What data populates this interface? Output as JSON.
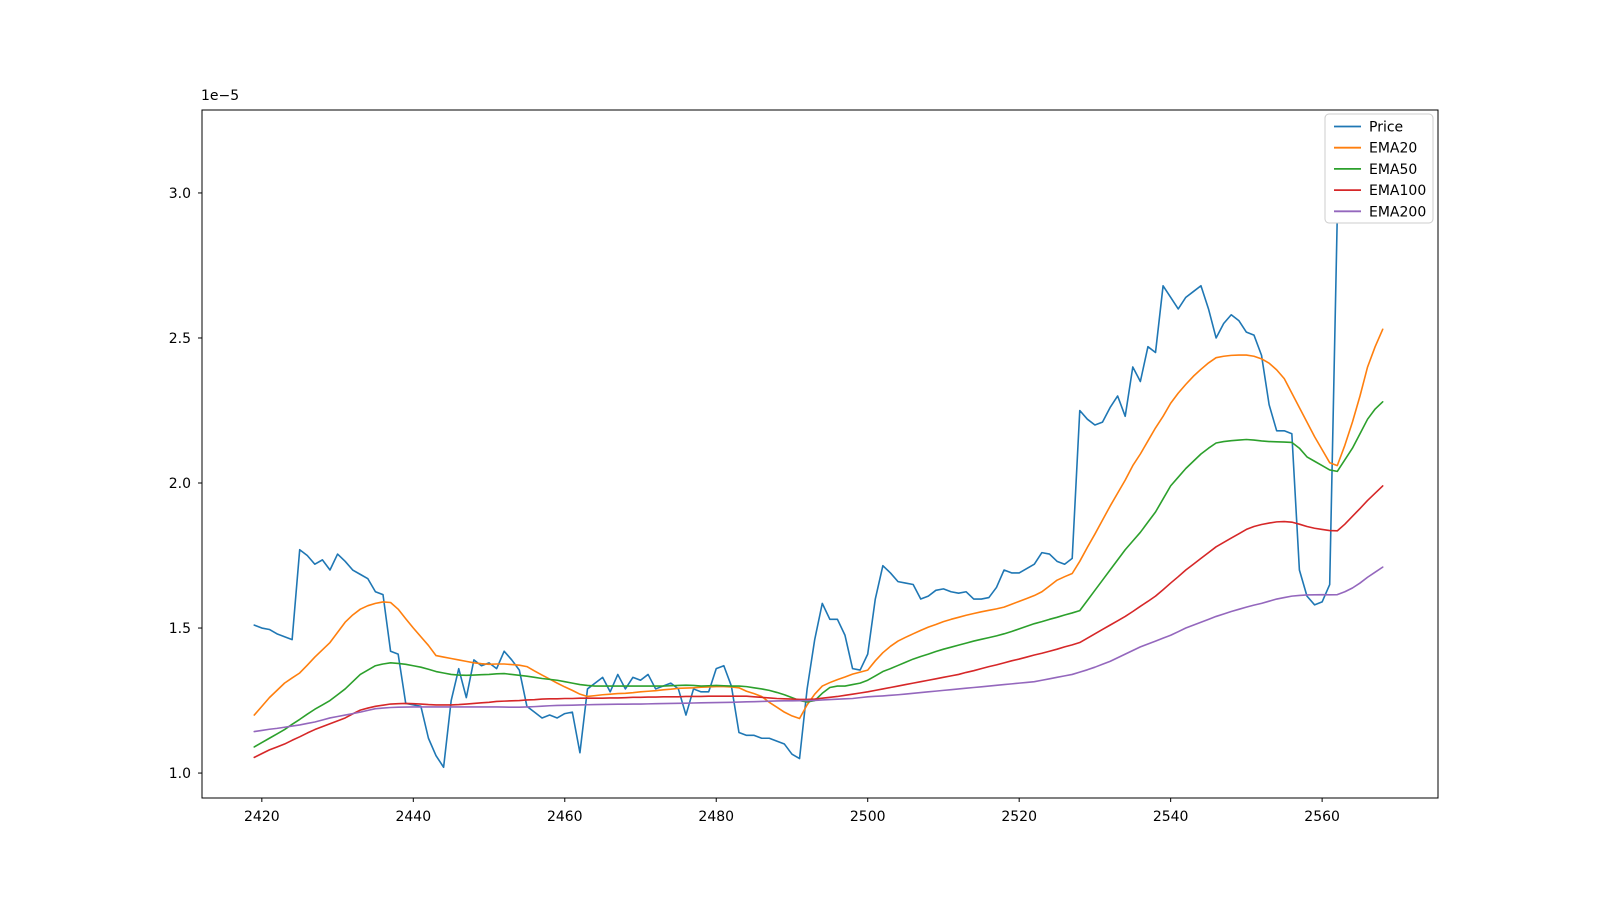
{
  "figure": {
    "background": "#ffffff",
    "offset_label": "1e−5"
  },
  "chart_data": {
    "type": "line",
    "title": "",
    "xlabel": "",
    "ylabel": "",
    "grid": false,
    "legend_position": "upper right",
    "y_offset_text": "1e−5",
    "xlim": [
      2412.1,
      2575.3
    ],
    "ylim": [
      0.914,
      3.286
    ],
    "xticks": [
      2420,
      2440,
      2460,
      2480,
      2500,
      2520,
      2540,
      2560
    ],
    "ytick_labels": [
      "1.0",
      "1.5",
      "2.0",
      "2.5",
      "3.0"
    ],
    "yticks": [
      1.0,
      1.5,
      2.0,
      2.5,
      3.0
    ],
    "x": [
      2419,
      2420,
      2421,
      2422,
      2423,
      2424,
      2425,
      2426,
      2427,
      2428,
      2429,
      2430,
      2431,
      2432,
      2433,
      2434,
      2435,
      2436,
      2437,
      2438,
      2439,
      2440,
      2441,
      2442,
      2443,
      2444,
      2445,
      2446,
      2447,
      2448,
      2449,
      2450,
      2451,
      2452,
      2453,
      2454,
      2455,
      2456,
      2457,
      2458,
      2459,
      2460,
      2461,
      2462,
      2463,
      2464,
      2465,
      2466,
      2467,
      2468,
      2469,
      2470,
      2471,
      2472,
      2473,
      2474,
      2475,
      2476,
      2477,
      2478,
      2479,
      2480,
      2481,
      2482,
      2483,
      2484,
      2485,
      2486,
      2487,
      2488,
      2489,
      2490,
      2491,
      2492,
      2493,
      2494,
      2495,
      2496,
      2497,
      2498,
      2499,
      2500,
      2501,
      2502,
      2503,
      2504,
      2505,
      2506,
      2507,
      2508,
      2509,
      2510,
      2511,
      2512,
      2513,
      2514,
      2515,
      2516,
      2517,
      2518,
      2519,
      2520,
      2521,
      2522,
      2523,
      2524,
      2525,
      2526,
      2527,
      2528,
      2529,
      2530,
      2531,
      2532,
      2533,
      2534,
      2535,
      2536,
      2537,
      2538,
      2539,
      2540,
      2541,
      2542,
      2543,
      2544,
      2545,
      2546,
      2547,
      2548,
      2549,
      2550,
      2551,
      2552,
      2553,
      2554,
      2555,
      2556,
      2557,
      2558,
      2559,
      2560,
      2561,
      2562,
      2563,
      2564,
      2565,
      2566,
      2567,
      2568
    ],
    "series": [
      {
        "name": "Price",
        "color": "#1f77b4",
        "values": [
          1.51,
          1.5,
          1.495,
          1.48,
          1.47,
          1.46,
          1.77,
          1.75,
          1.72,
          1.735,
          1.7,
          1.755,
          1.73,
          1.7,
          1.685,
          1.67,
          1.625,
          1.615,
          1.42,
          1.41,
          1.24,
          1.235,
          1.23,
          1.12,
          1.06,
          1.02,
          1.25,
          1.36,
          1.26,
          1.39,
          1.37,
          1.38,
          1.36,
          1.42,
          1.39,
          1.355,
          1.23,
          1.21,
          1.19,
          1.2,
          1.19,
          1.205,
          1.21,
          1.07,
          1.29,
          1.31,
          1.33,
          1.28,
          1.34,
          1.29,
          1.33,
          1.32,
          1.34,
          1.29,
          1.3,
          1.31,
          1.29,
          1.2,
          1.29,
          1.28,
          1.28,
          1.36,
          1.37,
          1.3,
          1.14,
          1.13,
          1.13,
          1.12,
          1.12,
          1.11,
          1.1,
          1.065,
          1.05,
          1.29,
          1.46,
          1.585,
          1.53,
          1.53,
          1.475,
          1.36,
          1.355,
          1.41,
          1.6,
          1.715,
          1.69,
          1.66,
          1.655,
          1.65,
          1.6,
          1.61,
          1.63,
          1.635,
          1.625,
          1.62,
          1.625,
          1.6,
          1.6,
          1.605,
          1.64,
          1.7,
          1.69,
          1.69,
          1.705,
          1.72,
          1.76,
          1.755,
          1.73,
          1.72,
          1.74,
          2.25,
          2.22,
          2.2,
          2.21,
          2.26,
          2.3,
          2.23,
          2.4,
          2.35,
          2.47,
          2.45,
          2.68,
          2.64,
          2.6,
          2.64,
          2.66,
          2.68,
          2.6,
          2.5,
          2.55,
          2.58,
          2.56,
          2.52,
          2.51,
          2.44,
          2.27,
          2.18,
          2.18,
          2.17,
          1.7,
          1.61,
          1.58,
          1.59,
          1.65,
          2.92,
          3.1,
          3.19,
          3.12,
          3.16,
          3.14,
          3.18
        ]
      },
      {
        "name": "EMA20",
        "color": "#ff7f0e",
        "values": [
          1.2,
          1.23,
          1.26,
          1.285,
          1.31,
          1.328,
          1.345,
          1.372,
          1.4,
          1.425,
          1.45,
          1.485,
          1.52,
          1.545,
          1.565,
          1.577,
          1.585,
          1.59,
          1.588,
          1.565,
          1.532,
          1.5,
          1.47,
          1.44,
          1.405,
          1.4,
          1.395,
          1.39,
          1.385,
          1.38,
          1.377,
          1.375,
          1.376,
          1.376,
          1.374,
          1.372,
          1.367,
          1.352,
          1.338,
          1.324,
          1.31,
          1.297,
          1.285,
          1.272,
          1.264,
          1.267,
          1.27,
          1.272,
          1.274,
          1.275,
          1.277,
          1.28,
          1.282,
          1.284,
          1.287,
          1.289,
          1.292,
          1.293,
          1.294,
          1.296,
          1.297,
          1.298,
          1.298,
          1.297,
          1.294,
          1.282,
          1.274,
          1.264,
          1.244,
          1.227,
          1.21,
          1.197,
          1.188,
          1.235,
          1.272,
          1.3,
          1.312,
          1.322,
          1.331,
          1.341,
          1.348,
          1.355,
          1.387,
          1.415,
          1.437,
          1.455,
          1.468,
          1.48,
          1.492,
          1.503,
          1.512,
          1.522,
          1.53,
          1.537,
          1.544,
          1.55,
          1.556,
          1.561,
          1.566,
          1.572,
          1.582,
          1.592,
          1.602,
          1.612,
          1.625,
          1.645,
          1.665,
          1.677,
          1.688,
          1.73,
          1.778,
          1.824,
          1.872,
          1.92,
          1.965,
          2.01,
          2.06,
          2.1,
          2.145,
          2.19,
          2.23,
          2.275,
          2.31,
          2.34,
          2.368,
          2.392,
          2.414,
          2.432,
          2.437,
          2.44,
          2.441,
          2.441,
          2.437,
          2.428,
          2.413,
          2.39,
          2.36,
          2.31,
          2.26,
          2.21,
          2.16,
          2.115,
          2.07,
          2.06,
          2.13,
          2.21,
          2.3,
          2.4,
          2.47,
          2.53
        ]
      },
      {
        "name": "EMA50",
        "color": "#2ca02c",
        "values": [
          1.09,
          1.105,
          1.12,
          1.135,
          1.15,
          1.168,
          1.185,
          1.203,
          1.22,
          1.235,
          1.25,
          1.27,
          1.29,
          1.315,
          1.34,
          1.355,
          1.37,
          1.376,
          1.38,
          1.378,
          1.375,
          1.37,
          1.365,
          1.358,
          1.35,
          1.345,
          1.34,
          1.338,
          1.337,
          1.338,
          1.339,
          1.34,
          1.342,
          1.343,
          1.34,
          1.337,
          1.334,
          1.33,
          1.326,
          1.323,
          1.32,
          1.315,
          1.31,
          1.305,
          1.302,
          1.3,
          1.3,
          1.3,
          1.3,
          1.3,
          1.3,
          1.3,
          1.3,
          1.3,
          1.3,
          1.301,
          1.302,
          1.303,
          1.302,
          1.3,
          1.301,
          1.302,
          1.301,
          1.3,
          1.3,
          1.298,
          1.294,
          1.29,
          1.285,
          1.278,
          1.27,
          1.26,
          1.25,
          1.245,
          1.25,
          1.275,
          1.295,
          1.3,
          1.3,
          1.305,
          1.31,
          1.32,
          1.335,
          1.35,
          1.36,
          1.371,
          1.382,
          1.393,
          1.402,
          1.41,
          1.419,
          1.427,
          1.434,
          1.441,
          1.448,
          1.455,
          1.461,
          1.467,
          1.473,
          1.48,
          1.488,
          1.497,
          1.506,
          1.515,
          1.522,
          1.53,
          1.537,
          1.545,
          1.552,
          1.56,
          1.595,
          1.63,
          1.665,
          1.7,
          1.735,
          1.77,
          1.8,
          1.83,
          1.865,
          1.9,
          1.945,
          1.99,
          2.02,
          2.05,
          2.075,
          2.1,
          2.12,
          2.138,
          2.143,
          2.146,
          2.148,
          2.15,
          2.148,
          2.145,
          2.143,
          2.142,
          2.141,
          2.14,
          2.12,
          2.09,
          2.075,
          2.06,
          2.045,
          2.04,
          2.08,
          2.12,
          2.17,
          2.22,
          2.255,
          2.28
        ]
      },
      {
        "name": "EMA100",
        "color": "#d62728",
        "values": [
          1.054,
          1.067,
          1.08,
          1.09,
          1.1,
          1.113,
          1.125,
          1.138,
          1.15,
          1.16,
          1.17,
          1.18,
          1.19,
          1.204,
          1.217,
          1.224,
          1.23,
          1.234,
          1.238,
          1.239,
          1.24,
          1.239,
          1.238,
          1.236,
          1.235,
          1.235,
          1.235,
          1.236,
          1.238,
          1.24,
          1.242,
          1.244,
          1.247,
          1.248,
          1.249,
          1.25,
          1.252,
          1.253,
          1.255,
          1.256,
          1.256,
          1.257,
          1.257,
          1.258,
          1.258,
          1.258,
          1.258,
          1.259,
          1.259,
          1.26,
          1.261,
          1.261,
          1.262,
          1.262,
          1.263,
          1.263,
          1.263,
          1.264,
          1.264,
          1.264,
          1.265,
          1.265,
          1.265,
          1.265,
          1.265,
          1.265,
          1.263,
          1.261,
          1.259,
          1.257,
          1.256,
          1.255,
          1.254,
          1.254,
          1.255,
          1.258,
          1.261,
          1.264,
          1.268,
          1.272,
          1.276,
          1.28,
          1.285,
          1.29,
          1.295,
          1.3,
          1.305,
          1.31,
          1.315,
          1.32,
          1.325,
          1.33,
          1.335,
          1.34,
          1.347,
          1.353,
          1.36,
          1.367,
          1.373,
          1.38,
          1.387,
          1.393,
          1.4,
          1.407,
          1.413,
          1.42,
          1.427,
          1.435,
          1.442,
          1.45,
          1.465,
          1.48,
          1.495,
          1.51,
          1.525,
          1.54,
          1.557,
          1.575,
          1.592,
          1.61,
          1.632,
          1.655,
          1.677,
          1.7,
          1.72,
          1.74,
          1.76,
          1.78,
          1.795,
          1.81,
          1.825,
          1.84,
          1.85,
          1.857,
          1.862,
          1.866,
          1.867,
          1.865,
          1.858,
          1.85,
          1.844,
          1.84,
          1.836,
          1.835,
          1.858,
          1.885,
          1.912,
          1.94,
          1.965,
          1.99
        ]
      },
      {
        "name": "EMA200",
        "color": "#9467bd",
        "values": [
          1.143,
          1.147,
          1.151,
          1.154,
          1.158,
          1.162,
          1.166,
          1.171,
          1.176,
          1.183,
          1.19,
          1.195,
          1.2,
          1.205,
          1.21,
          1.216,
          1.222,
          1.224,
          1.226,
          1.227,
          1.2275,
          1.228,
          1.228,
          1.228,
          1.228,
          1.228,
          1.228,
          1.228,
          1.228,
          1.228,
          1.228,
          1.228,
          1.228,
          1.2275,
          1.227,
          1.227,
          1.228,
          1.229,
          1.2305,
          1.232,
          1.233,
          1.2335,
          1.234,
          1.235,
          1.2355,
          1.236,
          1.2365,
          1.237,
          1.2373,
          1.2376,
          1.238,
          1.238,
          1.2385,
          1.239,
          1.2395,
          1.24,
          1.2405,
          1.241,
          1.2415,
          1.242,
          1.2425,
          1.243,
          1.2435,
          1.244,
          1.2448,
          1.2455,
          1.2462,
          1.247,
          1.2478,
          1.2485,
          1.2492,
          1.249,
          1.2495,
          1.25,
          1.2505,
          1.252,
          1.2533,
          1.2546,
          1.2558,
          1.257,
          1.26,
          1.263,
          1.2645,
          1.266,
          1.268,
          1.27,
          1.2725,
          1.275,
          1.2775,
          1.28,
          1.2825,
          1.285,
          1.2875,
          1.29,
          1.2925,
          1.295,
          1.2975,
          1.3,
          1.3025,
          1.305,
          1.3075,
          1.31,
          1.3125,
          1.315,
          1.32,
          1.325,
          1.33,
          1.335,
          1.34,
          1.348,
          1.356,
          1.365,
          1.375,
          1.385,
          1.3975,
          1.41,
          1.4225,
          1.435,
          1.445,
          1.455,
          1.465,
          1.475,
          1.4875,
          1.5,
          1.51,
          1.52,
          1.53,
          1.54,
          1.5485,
          1.557,
          1.5645,
          1.572,
          1.579,
          1.585,
          1.5925,
          1.6,
          1.605,
          1.61,
          1.6125,
          1.614,
          1.6145,
          1.615,
          1.6145,
          1.615,
          1.625,
          1.638,
          1.655,
          1.675,
          1.6925,
          1.71
        ]
      }
    ]
  },
  "legend": {
    "entries": [
      "Price",
      "EMA20",
      "EMA50",
      "EMA100",
      "EMA200"
    ]
  }
}
